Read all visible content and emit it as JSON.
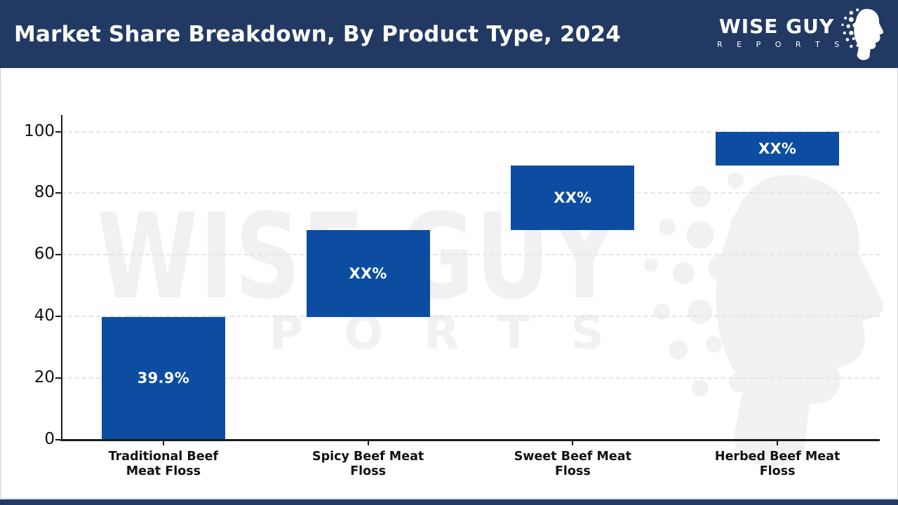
{
  "header": {
    "title": "Market Share Breakdown, By Product Type, 2024",
    "logo": {
      "line1": "WISE GUY",
      "line2": "R E P O R T S"
    }
  },
  "watermark": {
    "line1": "WISE GUY",
    "line2": "REPORTS"
  },
  "colors": {
    "header_navy": "#223a63",
    "bar_blue": "#0d4da1",
    "grid_gray": "#e4e4e4",
    "watermark_gray": "#f1f1f4",
    "text_black": "#111111",
    "label_white": "#ffffff"
  },
  "chart_data": {
    "type": "bar",
    "subtype": "waterfall",
    "title": "Market Share Breakdown, By Product Type, 2024",
    "categories": [
      "Traditional Beef\nMeat Floss",
      "Spicy Beef Meat\nFloss",
      "Sweet Beef Meat\nFloss",
      "Herbed Beef Meat\nFloss"
    ],
    "bars": [
      {
        "category": "Traditional Beef Meat Floss",
        "start": 0,
        "end": 39.9,
        "label": "39.9%"
      },
      {
        "category": "Spicy Beef Meat Floss",
        "start": 39.9,
        "end": 68.0,
        "label": "XX%"
      },
      {
        "category": "Sweet Beef Meat Floss",
        "start": 68.0,
        "end": 88.9,
        "label": "XX%"
      },
      {
        "category": "Herbed Beef Meat Floss",
        "start": 88.9,
        "end": 99.9,
        "label": "XX%"
      }
    ],
    "yticks": [
      0,
      20,
      40,
      60,
      80,
      100
    ],
    "ylim": [
      0,
      105.4
    ],
    "xlabel": "",
    "ylabel": "",
    "grid": "horizontal-dashed",
    "legend": "none",
    "bar_color": "#0d4da1",
    "value_label_color": "#ffffff"
  }
}
